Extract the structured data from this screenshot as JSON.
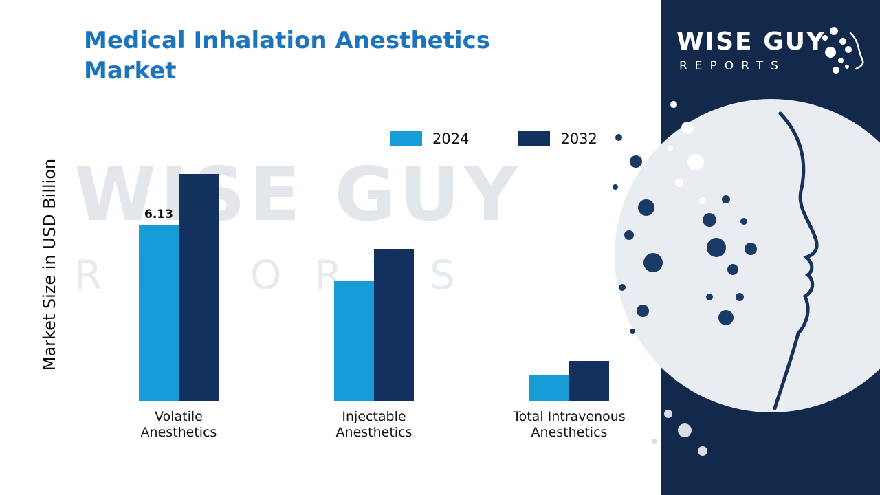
{
  "title": "Medical Inhalation Anesthetics Market",
  "logo": {
    "name": "WISE GUY",
    "subtitle": "REPORTS"
  },
  "watermark": {
    "line1": "WISE GUY",
    "line2": "REPORTS"
  },
  "colors": {
    "title_blue": "#1c75bc",
    "series_2024": "#189cd8",
    "series_2032": "#12315e",
    "panel_navy": "#13294b",
    "watermark_gray": "#e3e7ec"
  },
  "chart_data": {
    "type": "bar",
    "title": "Medical Inhalation Anesthetics Market",
    "xlabel": "",
    "ylabel": "Market Size in USD Billion",
    "ylim": [
      0,
      8.5
    ],
    "grid": false,
    "legend_position": "top",
    "categories": [
      "Volatile Anesthetics",
      "Injectable Anesthetics",
      "Total Intravenous Anesthetics"
    ],
    "series": [
      {
        "name": "2024",
        "color": "#189cd8",
        "values": [
          6.13,
          4.2,
          0.9
        ]
      },
      {
        "name": "2032",
        "color": "#12315e",
        "values": [
          7.9,
          5.3,
          1.4
        ]
      }
    ],
    "bar_labels": [
      {
        "series": 0,
        "category": 0,
        "text": "6.13"
      }
    ]
  }
}
